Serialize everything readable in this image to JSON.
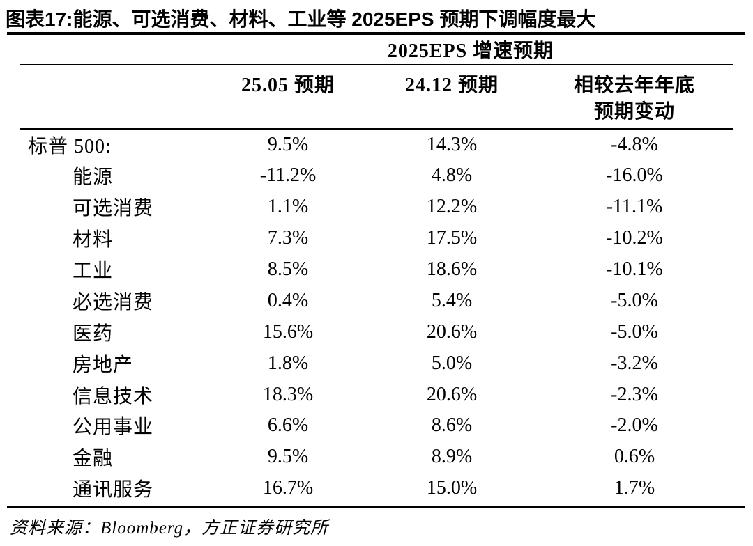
{
  "page": {
    "title": "图表17:能源、可选消费、材料、工业等 2025EPS 预期下调幅度最大",
    "source": "资料来源：Bloomberg，方正证券研究所"
  },
  "table": {
    "span_header": "2025EPS 增速预期",
    "headers": {
      "forecast_2505": "25.05 预期",
      "forecast_2412": "24.12 预期",
      "change_line1": "相较去年年底",
      "change_line2": "预期变动"
    }
  },
  "chart_data": {
    "type": "table",
    "title": "图表17:能源、可选消费、材料、工业等 2025EPS 预期下调幅度最大",
    "group_header": "2025EPS 增速预期",
    "columns": [
      "25.05 预期",
      "24.12 预期",
      "相较去年年底 预期变动"
    ],
    "unit": "percent",
    "rows": [
      {
        "label": "标普 500:",
        "indent": false,
        "values": [
          "9.5%",
          "14.3%",
          "-4.8%"
        ],
        "numeric": [
          9.5,
          14.3,
          -4.8
        ]
      },
      {
        "label": "能源",
        "indent": true,
        "values": [
          "-11.2%",
          "4.8%",
          "-16.0%"
        ],
        "numeric": [
          -11.2,
          4.8,
          -16.0
        ]
      },
      {
        "label": "可选消费",
        "indent": true,
        "values": [
          "1.1%",
          "12.2%",
          "-11.1%"
        ],
        "numeric": [
          1.1,
          12.2,
          -11.1
        ]
      },
      {
        "label": "材料",
        "indent": true,
        "values": [
          "7.3%",
          "17.5%",
          "-10.2%"
        ],
        "numeric": [
          7.3,
          17.5,
          -10.2
        ]
      },
      {
        "label": "工业",
        "indent": true,
        "values": [
          "8.5%",
          "18.6%",
          "-10.1%"
        ],
        "numeric": [
          8.5,
          18.6,
          -10.1
        ]
      },
      {
        "label": "必选消费",
        "indent": true,
        "values": [
          "0.4%",
          "5.4%",
          "-5.0%"
        ],
        "numeric": [
          0.4,
          5.4,
          -5.0
        ]
      },
      {
        "label": "医药",
        "indent": true,
        "values": [
          "15.6%",
          "20.6%",
          "-5.0%"
        ],
        "numeric": [
          15.6,
          20.6,
          -5.0
        ]
      },
      {
        "label": "房地产",
        "indent": true,
        "values": [
          "1.8%",
          "5.0%",
          "-3.2%"
        ],
        "numeric": [
          1.8,
          5.0,
          -3.2
        ]
      },
      {
        "label": "信息技术",
        "indent": true,
        "values": [
          "18.3%",
          "20.6%",
          "-2.3%"
        ],
        "numeric": [
          18.3,
          20.6,
          -2.3
        ]
      },
      {
        "label": "公用事业",
        "indent": true,
        "values": [
          "6.6%",
          "8.6%",
          "-2.0%"
        ],
        "numeric": [
          6.6,
          8.6,
          -2.0
        ]
      },
      {
        "label": "金融",
        "indent": true,
        "values": [
          "9.5%",
          "8.9%",
          "0.6%"
        ],
        "numeric": [
          9.5,
          8.9,
          0.6
        ]
      },
      {
        "label": "通讯服务",
        "indent": true,
        "values": [
          "16.7%",
          "15.0%",
          "1.7%"
        ],
        "numeric": [
          16.7,
          15.0,
          1.7
        ]
      }
    ],
    "source": "资料来源：Bloomberg，方正证券研究所",
    "text_color": "#000000",
    "background_color": "#ffffff",
    "legend_position": "none",
    "grid": "horizontal-rules-only"
  }
}
